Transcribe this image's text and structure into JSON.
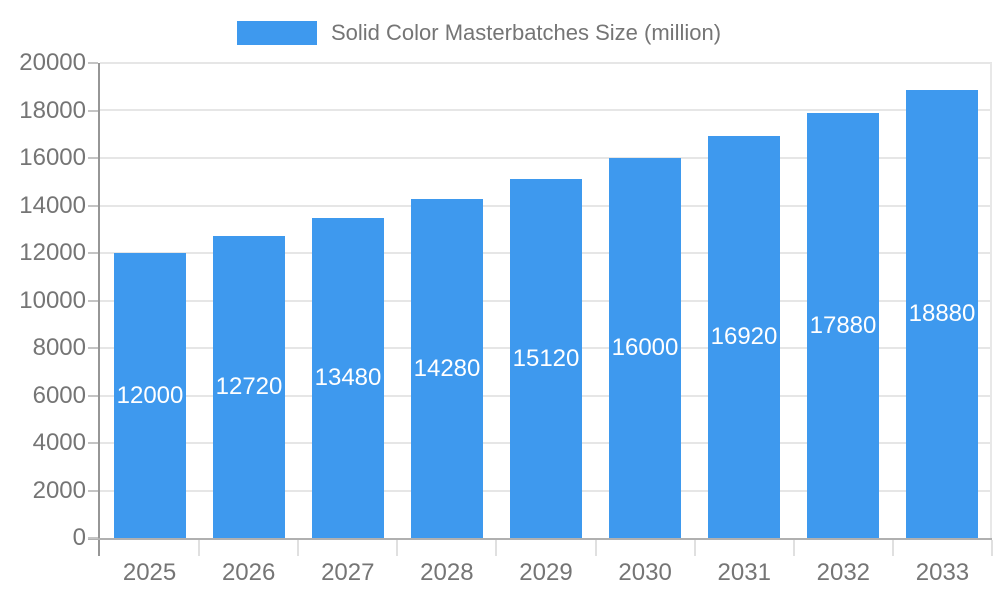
{
  "chart_data": {
    "type": "bar",
    "title": "Solid Color Masterbatches Size (million)",
    "categories": [
      "2025",
      "2026",
      "2027",
      "2028",
      "2029",
      "2030",
      "2031",
      "2032",
      "2033"
    ],
    "values": [
      12000,
      12720,
      13480,
      14280,
      15120,
      16000,
      16920,
      17880,
      18880
    ],
    "xlabel": "",
    "ylabel": "",
    "ylim": [
      0,
      20000
    ],
    "ytick_step": 2000,
    "yticks": [
      0,
      2000,
      4000,
      6000,
      8000,
      10000,
      12000,
      14000,
      16000,
      18000,
      20000
    ],
    "grid": true,
    "legend_position": "top",
    "bar_labels_inside": true,
    "colors": {
      "bar": "#3e99ee",
      "bar_label_text": "#ffffff",
      "axis_text": "#757575",
      "y_axis_line": "#969696",
      "x_axis_line": "#b0b0b0",
      "gridline": "#e6e6e6",
      "boundary_tick": "#e0e0e0"
    }
  },
  "legend": {
    "label": "Solid Color Masterbatches Size (million)",
    "swatch_color": "#3e99ee"
  }
}
